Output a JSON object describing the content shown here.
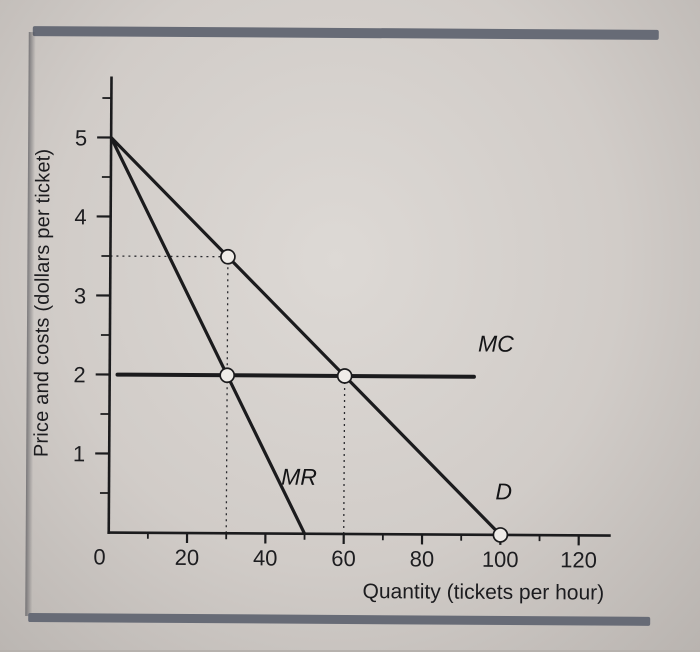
{
  "colors": {
    "rule": "#676b76",
    "axis": "#1b1b1d",
    "guide": "#2a2a2e",
    "marker_fill": "#efece8",
    "text": "#1c1c1f"
  },
  "chart_data": {
    "type": "line",
    "title": "",
    "xlabel": "Quantity (tickets per hour)",
    "ylabel": "Price and costs (dollars per ticket)",
    "xlim": [
      0,
      120
    ],
    "ylim": [
      0,
      5
    ],
    "grid": false,
    "legend": "none",
    "xticks": [
      0,
      20,
      40,
      60,
      80,
      100,
      120
    ],
    "yticks": [
      1,
      2,
      3,
      4,
      5
    ],
    "x_minor_ticks": [
      10,
      30,
      50,
      70,
      90,
      110
    ],
    "y_minor_ticks": [
      0.5,
      1.5,
      2.5,
      3.5,
      4.5,
      5.5
    ],
    "series": [
      {
        "name": "D",
        "label": "D",
        "points": [
          [
            0,
            5
          ],
          [
            100,
            0
          ]
        ],
        "stroke_width": 3.2,
        "label_at": [
          100.8,
          0.45
        ],
        "label_anchor": "middle"
      },
      {
        "name": "MR",
        "label": "MR",
        "points": [
          [
            0,
            5
          ],
          [
            50,
            0
          ]
        ],
        "stroke_width": 3.2,
        "label_at": [
          48.5,
          0.62
        ],
        "label_anchor": "middle"
      },
      {
        "name": "MC",
        "label": "MC",
        "points": [
          [
            2,
            2
          ],
          [
            93,
            2
          ]
        ],
        "stroke_width": 4.0,
        "label_at": [
          94,
          2.32
        ],
        "label_anchor": "start"
      }
    ],
    "guides": [
      {
        "type": "v",
        "x": 30,
        "to_y": 3.5
      },
      {
        "type": "h",
        "y": 3.5,
        "to_x": 30
      },
      {
        "type": "v",
        "x": 60,
        "to_y": 2
      }
    ],
    "markers": [
      [
        30,
        3.5
      ],
      [
        30,
        2
      ],
      [
        60,
        2
      ],
      [
        100,
        0
      ]
    ]
  }
}
